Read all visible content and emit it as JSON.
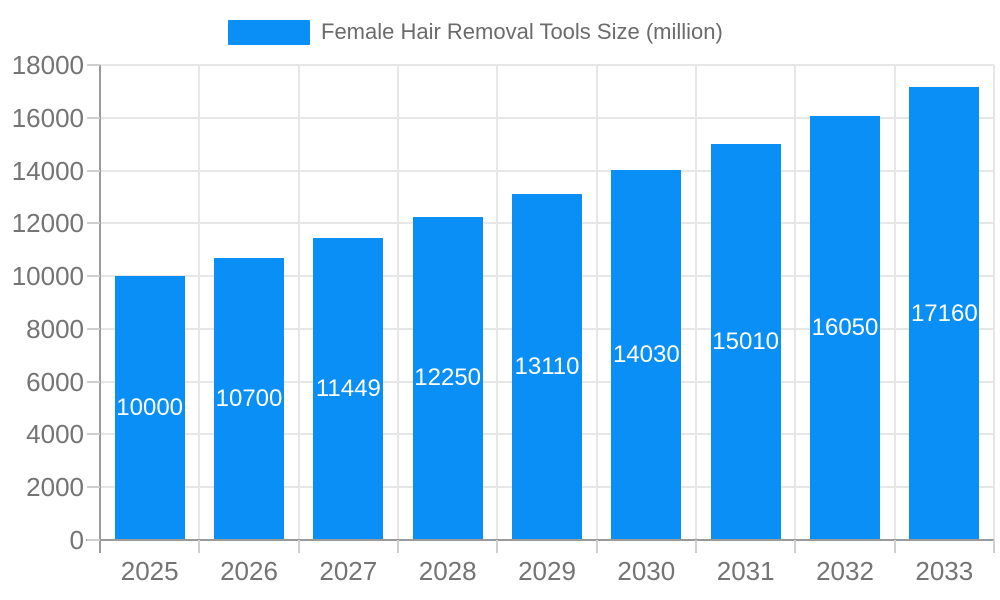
{
  "legend": {
    "label": "Female Hair Removal Tools Size (million)"
  },
  "chart_data": {
    "type": "bar",
    "title": "Female Hair Removal Tools Size (million)",
    "categories": [
      "2025",
      "2026",
      "2027",
      "2028",
      "2029",
      "2030",
      "2031",
      "2032",
      "2033"
    ],
    "values": [
      10000,
      10700,
      11449,
      12250,
      13110,
      14030,
      15010,
      16050,
      17160
    ],
    "yticks": [
      0,
      2000,
      4000,
      6000,
      8000,
      10000,
      12000,
      14000,
      16000,
      18000
    ],
    "ylim": [
      0,
      18000
    ],
    "xlabel": "",
    "ylabel": "",
    "grid": true,
    "legend_position": "top",
    "background_color": "#ffffff",
    "bar_color": "#098ff5",
    "bar_label_color": "#ffffff",
    "axis_line_color": "#9a9a9a",
    "gridline_color": "#e7e7e7",
    "tick_color": "#cfcfcf",
    "axis_label_color": "#747474",
    "title_color": "#6b6b6b"
  }
}
